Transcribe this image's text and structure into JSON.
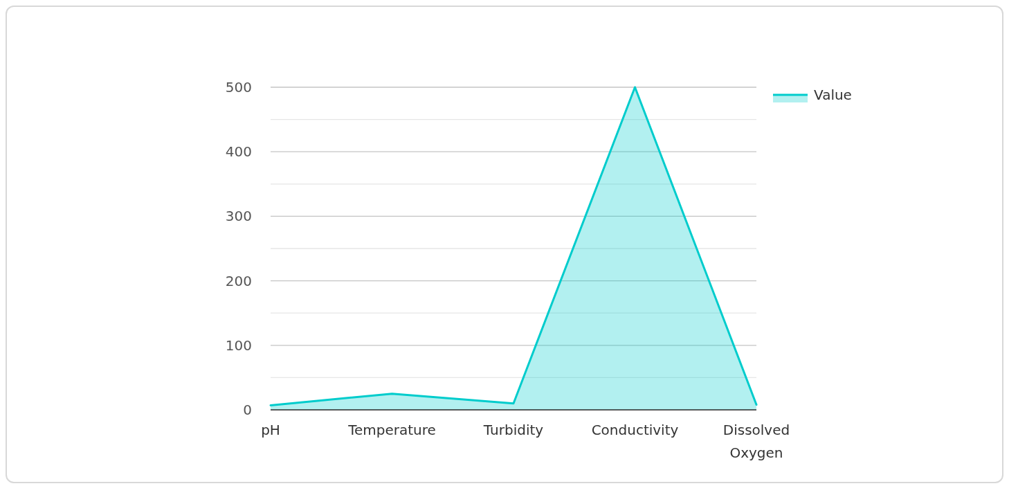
{
  "chart_data": {
    "type": "area",
    "categories": [
      "pH",
      "Temperature",
      "Turbidity",
      "Conductivity",
      "Dissolved Oxygen"
    ],
    "series": [
      {
        "name": "Value",
        "color": "#00cccc",
        "values": [
          7,
          25,
          10,
          500,
          8
        ]
      }
    ],
    "ylim": [
      0,
      500
    ],
    "yticks": [
      0,
      {
        "value": 50,
        "label": null
      },
      100,
      {
        "value": 150,
        "label": null
      },
      200,
      {
        "value": 250,
        "label": null
      },
      300,
      {
        "value": 350,
        "label": null
      },
      400,
      {
        "value": 450,
        "label": null
      },
      500
    ],
    "grid": "y",
    "legend": "top right",
    "marker": "none",
    "line_style": "solid"
  }
}
